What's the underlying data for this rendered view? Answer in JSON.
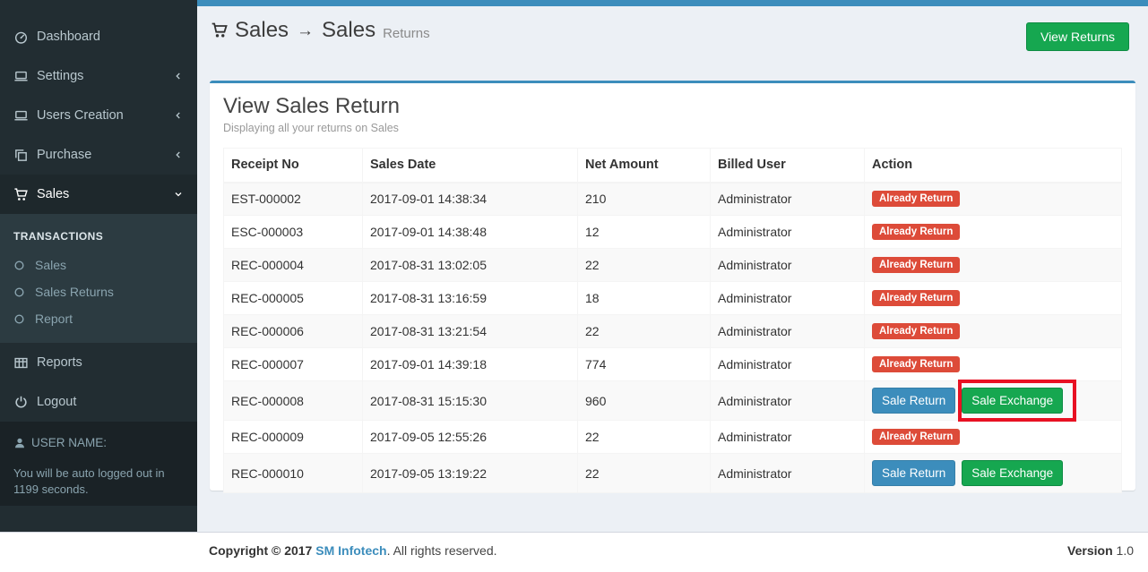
{
  "colors": {
    "accent_blue": "#3c8dbc",
    "success_green": "#16a750",
    "danger_red": "#dd4b39",
    "highlight_red": "#e81123",
    "sidebar_bg": "#222d32",
    "sidebar_active_bg": "#1e282c",
    "submenu_bg": "#2c3b41",
    "userpanel_bg": "#1a2226",
    "content_bg": "#ecf0f5",
    "sidebar_text": "#b8c7ce",
    "submenu_text": "#8aa4af"
  },
  "sidebar": {
    "items": [
      {
        "label": "Dashboard",
        "icon": "dashboard-icon"
      },
      {
        "label": "Settings",
        "icon": "laptop-icon",
        "chevron": "left"
      },
      {
        "label": "Users Creation",
        "icon": "laptop-icon",
        "chevron": "left"
      },
      {
        "label": "Purchase",
        "icon": "copy-icon",
        "chevron": "left"
      },
      {
        "label": "Sales",
        "icon": "cart-icon",
        "chevron": "down",
        "active": true
      }
    ],
    "submenu_header": "TRANSACTIONS",
    "submenu": [
      {
        "label": "Sales"
      },
      {
        "label": "Sales Returns"
      },
      {
        "label": "Report"
      }
    ],
    "items_bottom": [
      {
        "label": "Reports",
        "icon": "table-icon"
      },
      {
        "label": "Logout",
        "icon": "power-icon"
      }
    ],
    "user_label": "USER NAME:",
    "auto_logout_line1": "You will be auto logged out in",
    "auto_logout_line2": "1199 seconds."
  },
  "header": {
    "breadcrumb_primary": "Sales",
    "breadcrumb_separator": "→",
    "breadcrumb_secondary": "Sales",
    "breadcrumb_sub": "Returns",
    "view_returns_button": "View Returns"
  },
  "panel": {
    "title": "View Sales Return",
    "subtitle": "Displaying all your returns on Sales"
  },
  "table": {
    "columns": [
      "Receipt No",
      "Sales Date",
      "Net Amount",
      "Billed User",
      "Action"
    ],
    "rows": [
      {
        "receipt_no": "EST-000002",
        "sales_date": "2017-09-01 14:38:34",
        "net_amount": "210",
        "billed_user": "Administrator",
        "actions": [
          {
            "label": "Already Return",
            "type": "danger"
          }
        ]
      },
      {
        "receipt_no": "ESC-000003",
        "sales_date": "2017-09-01 14:38:48",
        "net_amount": "12",
        "billed_user": "Administrator",
        "actions": [
          {
            "label": "Already Return",
            "type": "danger"
          }
        ]
      },
      {
        "receipt_no": "REC-000004",
        "sales_date": "2017-08-31 13:02:05",
        "net_amount": "22",
        "billed_user": "Administrator",
        "actions": [
          {
            "label": "Already Return",
            "type": "danger"
          }
        ]
      },
      {
        "receipt_no": "REC-000005",
        "sales_date": "2017-08-31 13:16:59",
        "net_amount": "18",
        "billed_user": "Administrator",
        "actions": [
          {
            "label": "Already Return",
            "type": "danger"
          }
        ]
      },
      {
        "receipt_no": "REC-000006",
        "sales_date": "2017-08-31 13:21:54",
        "net_amount": "22",
        "billed_user": "Administrator",
        "actions": [
          {
            "label": "Already Return",
            "type": "danger"
          }
        ]
      },
      {
        "receipt_no": "REC-000007",
        "sales_date": "2017-09-01 14:39:18",
        "net_amount": "774",
        "billed_user": "Administrator",
        "actions": [
          {
            "label": "Already Return",
            "type": "danger"
          }
        ]
      },
      {
        "receipt_no": "REC-000008",
        "sales_date": "2017-08-31 15:15:30",
        "net_amount": "960",
        "billed_user": "Administrator",
        "actions": [
          {
            "label": "Sale Return",
            "type": "primary"
          },
          {
            "label": "Sale Exchange",
            "type": "success",
            "highlighted": true
          }
        ]
      },
      {
        "receipt_no": "REC-000009",
        "sales_date": "2017-09-05 12:55:26",
        "net_amount": "22",
        "billed_user": "Administrator",
        "actions": [
          {
            "label": "Already Return",
            "type": "danger"
          }
        ]
      },
      {
        "receipt_no": "REC-000010",
        "sales_date": "2017-09-05 13:19:22",
        "net_amount": "22",
        "billed_user": "Administrator",
        "actions": [
          {
            "label": "Sale Return",
            "type": "primary"
          },
          {
            "label": "Sale Exchange",
            "type": "success"
          }
        ]
      }
    ]
  },
  "footer": {
    "copyright_prefix": "Copyright © 2017",
    "brand": "SM Infotech",
    "copyright_suffix": ". All rights reserved.",
    "version_label": "Version",
    "version_value": "1.0"
  }
}
